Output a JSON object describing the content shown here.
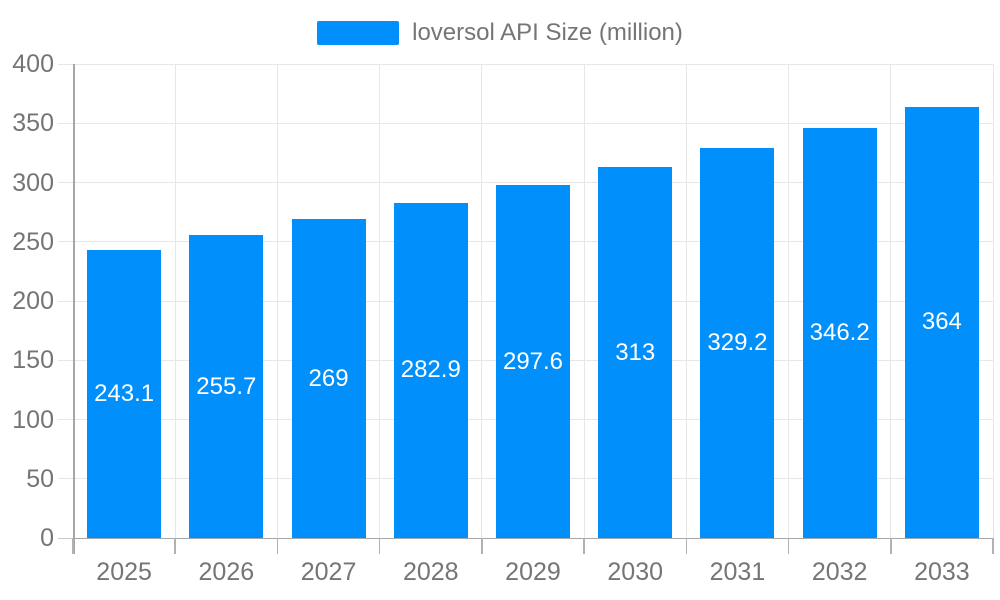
{
  "chart": {
    "legend_label": "loversol API Size (million)",
    "colors": {
      "bar": "#008FFB",
      "grid": "#e7e7e7",
      "axis_line": "#a3a7aa",
      "axis_text": "#757575",
      "data_label": "#ffffff",
      "background": "#ffffff"
    }
  },
  "chart_data": {
    "type": "bar",
    "title": "loversol API Size (million)",
    "series_name": "loversol API Size (million)",
    "categories": [
      "2025",
      "2026",
      "2027",
      "2028",
      "2029",
      "2030",
      "2031",
      "2032",
      "2033"
    ],
    "values": [
      243.1,
      255.7,
      269,
      282.9,
      297.6,
      313,
      329.2,
      346.2,
      364
    ],
    "data_labels": [
      "243.1",
      "255.7",
      "269",
      "282.9",
      "297.6",
      "313",
      "329.2",
      "346.2",
      "364"
    ],
    "xlabel": "",
    "ylabel": "",
    "ylim": [
      0,
      400
    ],
    "ytick_step": 50,
    "ytick_labels": [
      "0",
      "50",
      "100",
      "150",
      "200",
      "250",
      "300",
      "350",
      "400"
    ],
    "grid": true,
    "legend_position": "top",
    "data_label_position": "center"
  }
}
